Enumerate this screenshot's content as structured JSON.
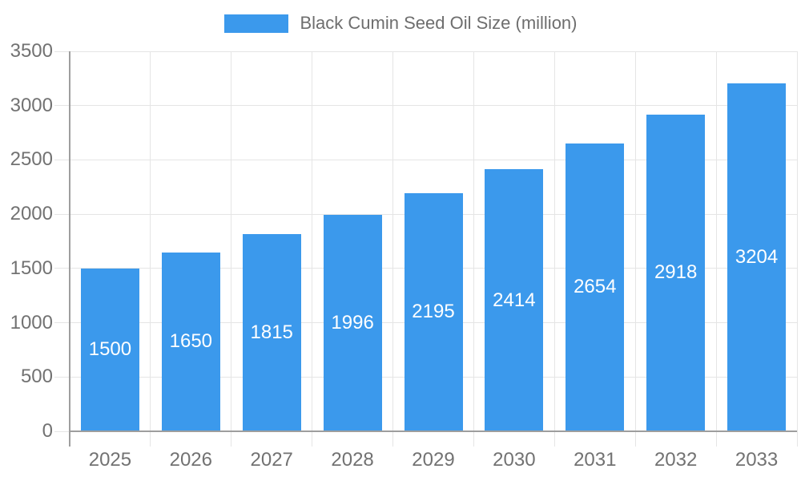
{
  "legend": {
    "label": "Black Cumin Seed Oil Size (million)"
  },
  "colors": {
    "bar": "#3B99EC",
    "grid_line": "#E5E5E5",
    "axis_line": "#9E9E9E",
    "tick_label": "#727272",
    "legend_text": "#6E6E6E",
    "bar_value_label": "#FFFFFF",
    "background": "#FFFFFF"
  },
  "chart_data": {
    "type": "bar",
    "title": "Black Cumin Seed Oil Size (million)",
    "categories": [
      "2025",
      "2026",
      "2027",
      "2028",
      "2029",
      "2030",
      "2031",
      "2032",
      "2033"
    ],
    "series": [
      {
        "name": "Black Cumin Seed Oil Size (million)",
        "values": [
          1500,
          1650,
          1815,
          1996,
          2195,
          2414,
          2654,
          2918,
          3204
        ]
      }
    ],
    "xlabel": "",
    "ylabel": "",
    "ylim": [
      0,
      3500
    ],
    "ytick_step": 500,
    "ytick_labels": [
      "0",
      "500",
      "1000",
      "1500",
      "2000",
      "2500",
      "3000",
      "3500"
    ],
    "grid": true,
    "legend_position": "top",
    "value_labels": "inside-center"
  }
}
